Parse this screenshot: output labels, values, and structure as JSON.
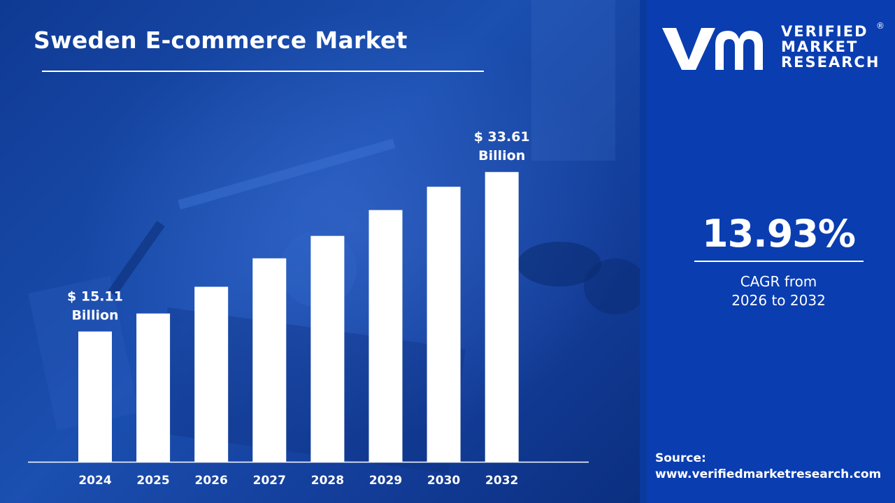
{
  "title": "Sweden E-commerce Market",
  "logo": {
    "line1": "VERIFIED",
    "line2": "MARKET",
    "line3": "RESEARCH",
    "registered": "®"
  },
  "cagr": {
    "value": "13.93%",
    "label_line1": "CAGR from",
    "label_line2": "2026 to 2032"
  },
  "source": {
    "label": "Source:",
    "url": "www.verifiedmarketresearch.com"
  },
  "colors": {
    "background": "#1b4fb0",
    "panel": "#0a3db0",
    "bar": "#ffffff",
    "text": "#ffffff"
  },
  "chart_data": {
    "type": "bar",
    "categories": [
      "2024",
      "2025",
      "2026",
      "2027",
      "2028",
      "2029",
      "2030",
      "2032"
    ],
    "values": [
      15.11,
      17.2,
      20.3,
      23.6,
      26.2,
      29.2,
      31.9,
      33.61
    ],
    "annotations": [
      {
        "category": "2024",
        "line1": "$ 15.11",
        "line2": "Billion"
      },
      {
        "category": "2032",
        "line1": "$ 33.61",
        "line2": "Billion"
      }
    ],
    "ylim": [
      0,
      47
    ],
    "grid": false,
    "legend": "none",
    "bar_color": "#ffffff"
  }
}
